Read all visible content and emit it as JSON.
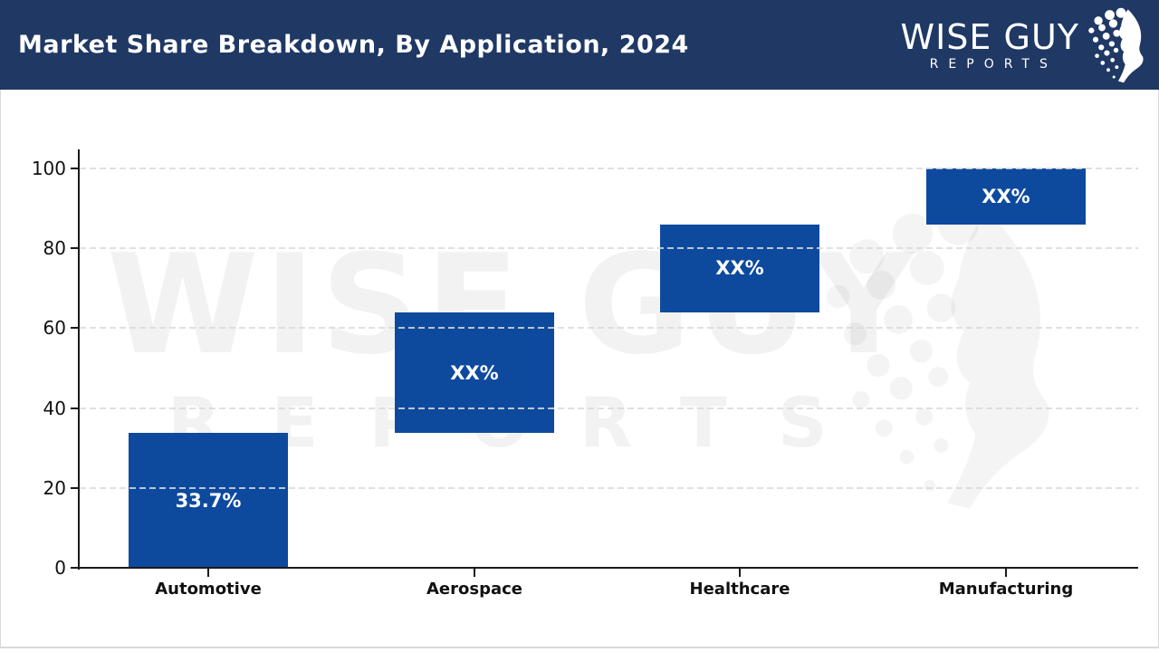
{
  "header": {
    "title": "Market Share Breakdown, By Application, 2024",
    "bg_color": "#1f3864",
    "brand": {
      "name": "WISE GUY",
      "sub": "REPORTS"
    }
  },
  "watermark": {
    "line1": "WISE GUY",
    "line2": "REPORTS"
  },
  "chart_data": {
    "type": "bar",
    "subtype": "waterfall",
    "title": "Market Share Breakdown, By Application, 2024",
    "categories": [
      "Automotive",
      "Aerospace",
      "Healthcare",
      "Manufacturing"
    ],
    "segments": [
      {
        "category": "Automotive",
        "start": 0,
        "end": 33.7,
        "value": 33.7,
        "label": "33.7%"
      },
      {
        "category": "Aerospace",
        "start": 33.7,
        "end": 64.0,
        "value": 30.3,
        "label": "XX%"
      },
      {
        "category": "Healthcare",
        "start": 64.0,
        "end": 85.9,
        "value": 21.9,
        "label": "XX%"
      },
      {
        "category": "Manufacturing",
        "start": 85.9,
        "end": 100,
        "value": 14.1,
        "label": "XX%"
      }
    ],
    "yticks": [
      0,
      20,
      40,
      60,
      80,
      100
    ],
    "ylim": [
      0,
      100
    ],
    "xlabel": "",
    "ylabel": "",
    "grid": "horizontal dashed",
    "legend": "none",
    "bar_color": "#0d4a9e",
    "label_color": "#ffffff",
    "axis_color": "#1a1a1a"
  }
}
